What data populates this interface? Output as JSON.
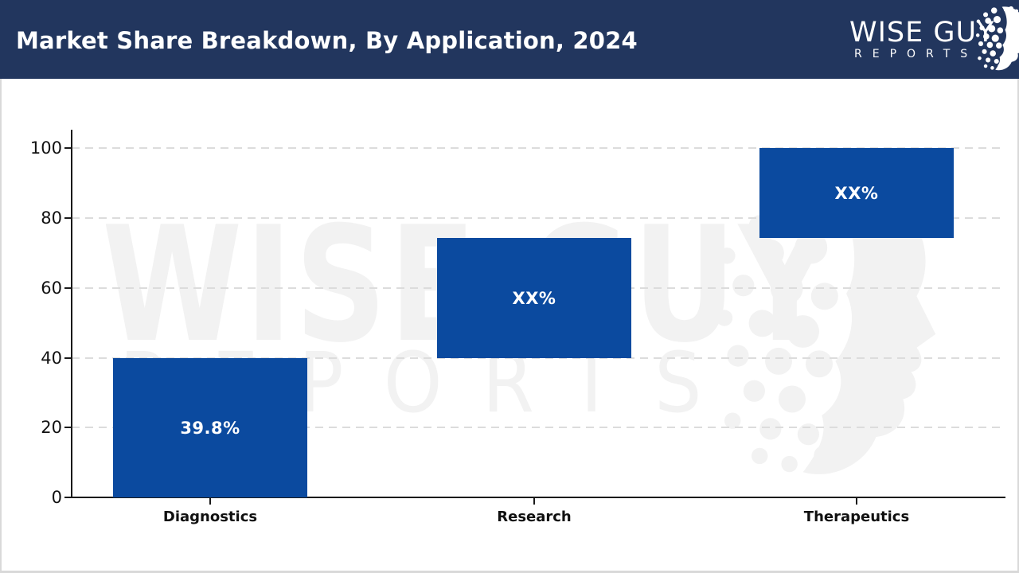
{
  "header": {
    "title": "Market Share Breakdown, By Application, 2024",
    "logo": {
      "line1": "WISE GUY",
      "line2": "REPORTS"
    }
  },
  "watermark": {
    "line1": "WISE GUY",
    "line2": "REPORTS"
  },
  "colors": {
    "header_bg": "#22365E",
    "bar": "#0B4A9F",
    "gridline": "#dcdcdc",
    "axis": "#1a1a1a",
    "text": "#111111",
    "watermark": "#f2f2f2",
    "bar_label": "#ffffff"
  },
  "chart_data": {
    "type": "bar",
    "subtype": "waterfall",
    "title": "Market Share Breakdown, By Application, 2024",
    "categories": [
      "Diagnostics",
      "Research",
      "Therapeutics"
    ],
    "segments": [
      {
        "category": "Diagnostics",
        "start": 0,
        "end": 39.8,
        "label": "39.8%"
      },
      {
        "category": "Research",
        "start": 39.8,
        "end": 74.2,
        "label": "XX%"
      },
      {
        "category": "Therapeutics",
        "start": 74.2,
        "end": 100,
        "label": "XX%"
      }
    ],
    "xlabel": "",
    "ylabel": "",
    "ylim": [
      0,
      100
    ],
    "yticks": [
      0,
      20,
      40,
      60,
      80,
      100
    ],
    "grid": "dashed-horizontal",
    "legend": "none"
  }
}
